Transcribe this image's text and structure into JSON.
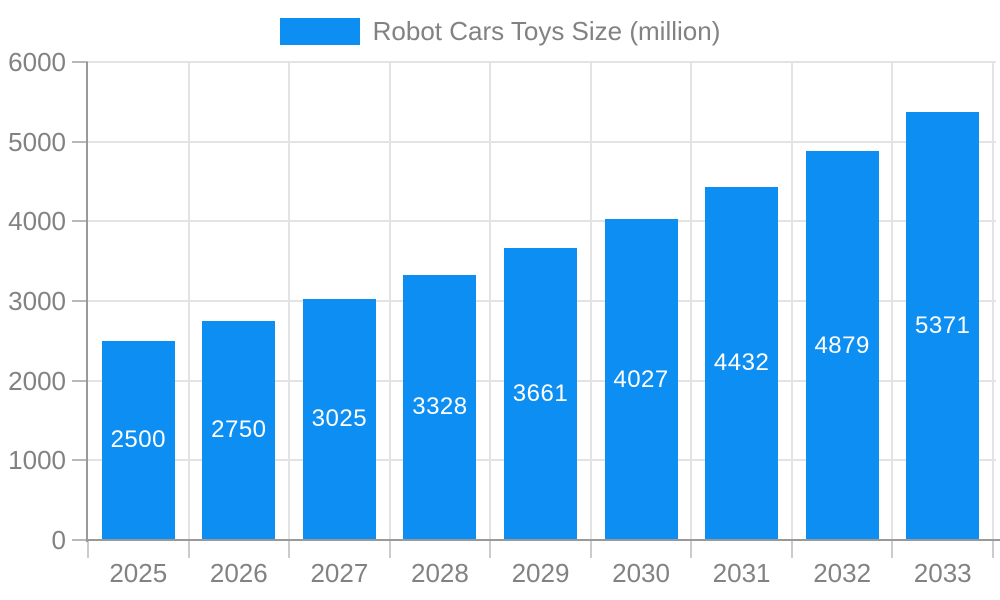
{
  "legend": {
    "label": "Robot Cars Toys Size (million)"
  },
  "chart_data": {
    "type": "bar",
    "title": "Robot Cars Toys Size (million)",
    "series_name": "Robot Cars Toys Size (million)",
    "categories": [
      "2025",
      "2026",
      "2027",
      "2028",
      "2029",
      "2030",
      "2031",
      "2032",
      "2033"
    ],
    "values": [
      2500,
      2750,
      3025,
      3328,
      3661,
      4027,
      4432,
      4879,
      5371
    ],
    "xlabel": "",
    "ylabel": "",
    "ylim": [
      0,
      6000
    ],
    "yticks": [
      0,
      1000,
      2000,
      3000,
      4000,
      5000,
      6000
    ],
    "grid": true,
    "legend_position": "top-center",
    "colors": {
      "bar": "#0d8ef2",
      "bar_label": "#ffffff",
      "axis": "#999999",
      "grid": "#e3e3e3",
      "tick": "#b8b8b8",
      "tick_minor": "#cccccc",
      "text": "#828282"
    }
  }
}
